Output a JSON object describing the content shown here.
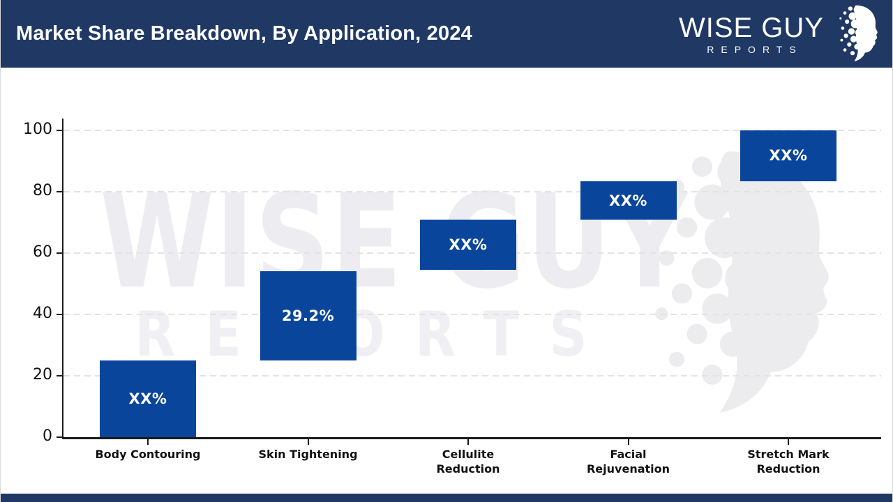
{
  "header": {
    "title": "Market Share Breakdown, By Application, 2024",
    "logo": {
      "line1": "WISE GUY",
      "line2": "REPORTS"
    }
  },
  "watermark": {
    "line1": "WISE GUY",
    "line2": "REPORTS"
  },
  "colors": {
    "header_bg": "#1F3864",
    "footer_bg": "#1F3864",
    "bar": "#0A459C",
    "axis": "#1a1a1a",
    "grid": "#e3e3e6",
    "watermark": "#ededf1"
  },
  "chart_data": {
    "type": "bar",
    "subtype": "waterfall",
    "title": "Market Share Breakdown, By Application, 2024",
    "categories": [
      "Body Contouring",
      "Skin Tightening",
      "Cellulite\nReduction",
      "Facial\nRejuvenation",
      "Stretch Mark\nReduction"
    ],
    "segments": [
      {
        "start": 0,
        "end": 25,
        "label": "XX%"
      },
      {
        "start": 25,
        "end": 54.2,
        "label": "29.2%"
      },
      {
        "start": 54.5,
        "end": 71,
        "label": "XX%"
      },
      {
        "start": 70.8,
        "end": 83.3,
        "label": "XX%"
      },
      {
        "start": 83.5,
        "end": 100,
        "label": "XX%"
      }
    ],
    "y_ticks": [
      0,
      20,
      40,
      60,
      80,
      100
    ],
    "ylim": [
      0,
      104
    ],
    "xlabel": "",
    "ylabel": "",
    "grid": "horizontal-dashed",
    "legend": "none",
    "bar_color": "#0A459C"
  }
}
